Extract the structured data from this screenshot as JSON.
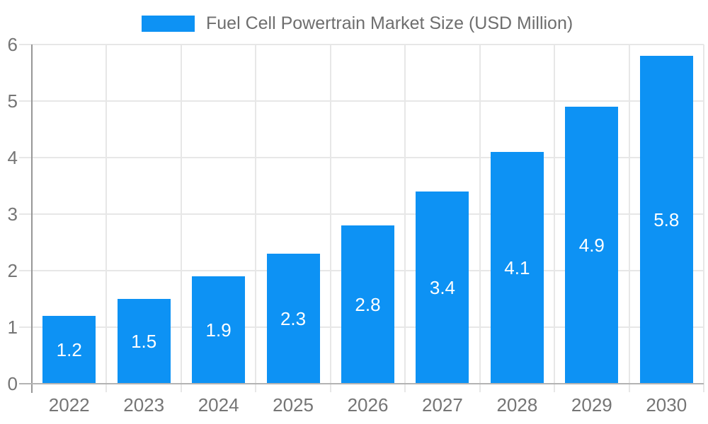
{
  "legend": {
    "label": "Fuel Cell Powertrain Market Size (USD Million)"
  },
  "chart_data": {
    "type": "bar",
    "title": "Fuel Cell Powertrain Market Size (USD Million)",
    "categories": [
      "2022",
      "2023",
      "2024",
      "2025",
      "2026",
      "2027",
      "2028",
      "2029",
      "2030"
    ],
    "values": [
      1.2,
      1.5,
      1.9,
      2.3,
      2.8,
      3.4,
      4.1,
      4.9,
      5.8
    ],
    "value_labels": [
      "1.2",
      "1.5",
      "1.9",
      "2.3",
      "2.8",
      "3.4",
      "4.1",
      "4.9",
      "5.8"
    ],
    "xlabel": "",
    "ylabel": "",
    "ylim": [
      0,
      6
    ],
    "yticks": [
      0,
      1,
      2,
      3,
      4,
      5,
      6
    ],
    "grid": true,
    "legend_position": "top-center",
    "bar_color": "#0d92f4",
    "value_label_color": "#ffffff",
    "axis_text_color": "#757575",
    "gridline_color": "#e7e7e7"
  }
}
